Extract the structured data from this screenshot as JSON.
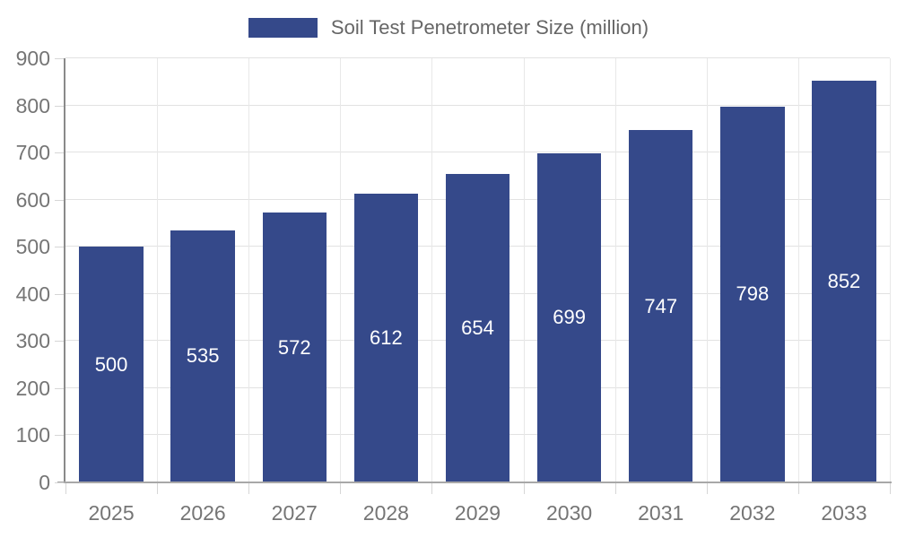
{
  "legend": {
    "label": "Soil Test Penetrometer Size (million)"
  },
  "colors": {
    "bar": "#35498a",
    "grid_h": "#e2e2e2",
    "grid_v": "#e8e8e8",
    "y_axis_line": "#8a8a8a",
    "x_axis_line": "#a8a8a8",
    "tick": "#d6d6d6",
    "axis_text": "#757575",
    "legend_text": "#666666",
    "value_text": "#ffffff",
    "background": "#ffffff"
  },
  "chart_data": {
    "type": "bar",
    "title": "Soil Test Penetrometer Size (million)",
    "categories": [
      "2025",
      "2026",
      "2027",
      "2028",
      "2029",
      "2030",
      "2031",
      "2032",
      "2033"
    ],
    "values": [
      500,
      535,
      572,
      612,
      654,
      699,
      747,
      798,
      852
    ],
    "xlabel": "",
    "ylabel": "",
    "ylim": [
      0,
      900
    ],
    "ytick_step": 100,
    "yticks": [
      0,
      100,
      200,
      300,
      400,
      500,
      600,
      700,
      800,
      900
    ],
    "grid": true,
    "legend_position": "top",
    "bar_label_position": "center",
    "bar_width_fraction": 0.7
  }
}
